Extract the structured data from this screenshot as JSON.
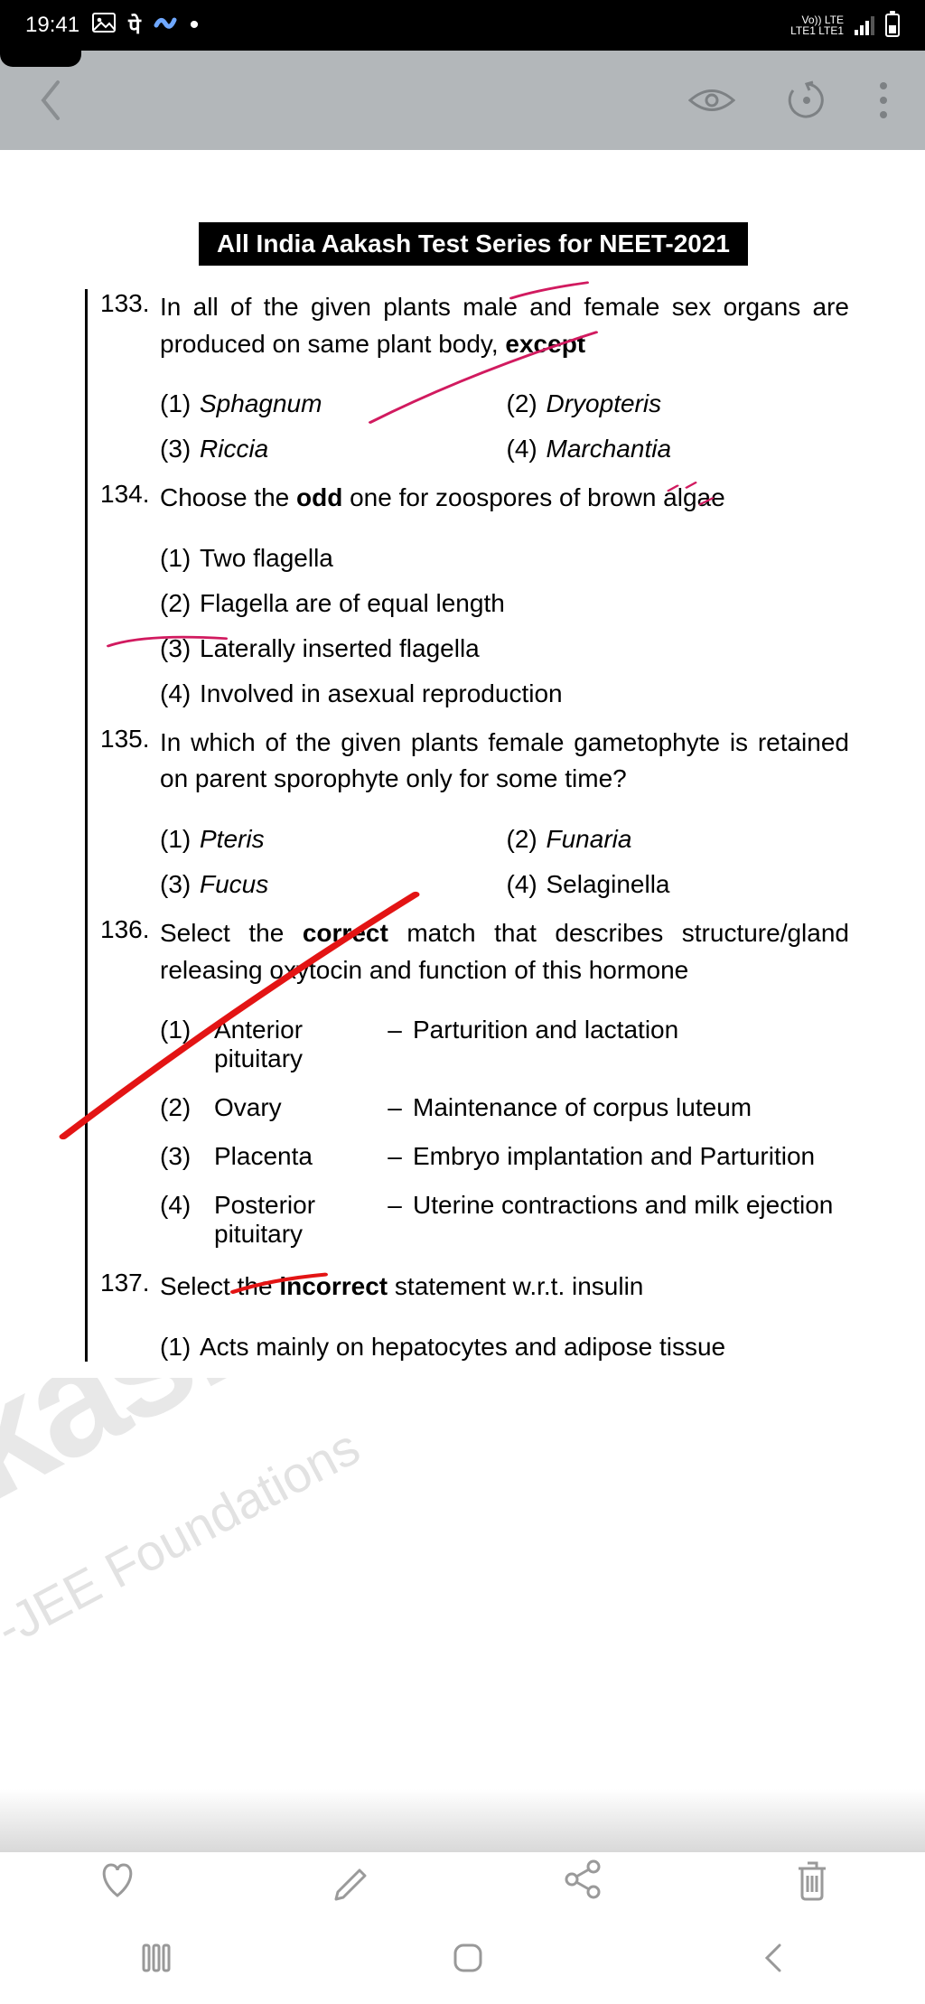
{
  "status": {
    "time": "19:41",
    "net_lines": [
      "Vo)) LTE",
      "LTE1 LTE1"
    ]
  },
  "banner": "All India Aakash Test Series for NEET-2021",
  "questions": [
    {
      "num": "133.",
      "text_html": "In all of the given plants male and female sex organs are produced on same plant body, <b>except</b>",
      "layout": "2col-italic",
      "opts": [
        {
          "n": "(1)",
          "t": "Sphagnum"
        },
        {
          "n": "(2)",
          "t": "Dryopteris"
        },
        {
          "n": "(3)",
          "t": "Riccia"
        },
        {
          "n": "(4)",
          "t": "Marchantia"
        }
      ]
    },
    {
      "num": "134.",
      "text_html": "Choose the <b>odd</b> one for zoospores of brown algae",
      "layout": "1col",
      "opts": [
        {
          "n": "(1)",
          "t": "Two flagella"
        },
        {
          "n": "(2)",
          "t": "Flagella are of equal length"
        },
        {
          "n": "(3)",
          "t": "Laterally inserted flagella"
        },
        {
          "n": "(4)",
          "t": "Involved in asexual reproduction"
        }
      ]
    },
    {
      "num": "135.",
      "text_html": "In which of the given plants female gametophyte is retained on parent sporophyte only for some time?",
      "layout": "2col-mixed",
      "opts": [
        {
          "n": "(1)",
          "t": "Pteris",
          "italic": true
        },
        {
          "n": "(2)",
          "t": "Funaria",
          "italic": true
        },
        {
          "n": "(3)",
          "t": "Fucus",
          "italic": true
        },
        {
          "n": "(4)",
          "t": "Selaginella",
          "italic": false
        }
      ]
    },
    {
      "num": "136.",
      "text_html": "Select the <b>correct</b> match that describes structure/gland releasing oxytocin and function of this hormone",
      "layout": "match",
      "opts": [
        {
          "n": "(1)",
          "l": "Anterior pituitary",
          "r": "Parturition and lactation"
        },
        {
          "n": "(2)",
          "l": "Ovary",
          "r": "Maintenance of corpus luteum"
        },
        {
          "n": "(3)",
          "l": "Placenta",
          "r": "Embryo implantation and Parturition"
        },
        {
          "n": "(4)",
          "l": "Posterior pituitary",
          "r": "Uterine contractions and milk ejection"
        }
      ]
    },
    {
      "num": "137.",
      "text_html": "Select the <b>incorrect</b> statement w.r.t. insulin",
      "layout": "1col",
      "opts": [
        {
          "n": "(1)",
          "t": "Acts mainly on hepatocytes and adipose tissue"
        }
      ]
    }
  ],
  "watermark_big": "kash",
  "watermark_small": "IT-JEE Foundations",
  "pen_color": "#d11a5f",
  "pen_color2": "#e31414"
}
